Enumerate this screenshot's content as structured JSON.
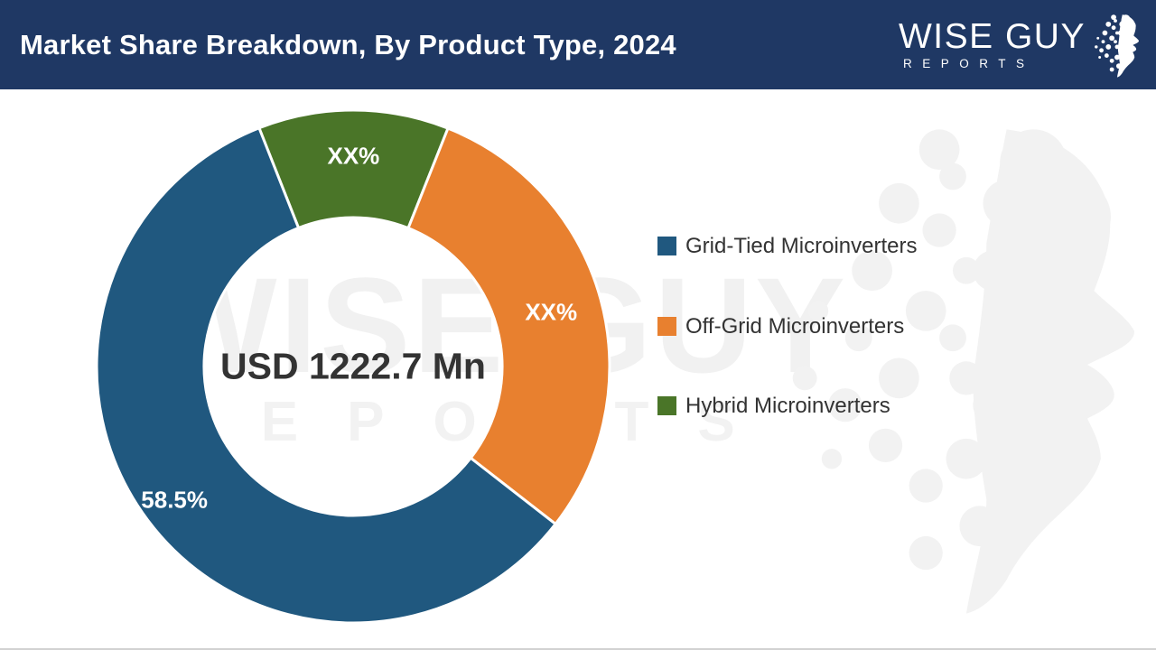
{
  "header": {
    "title": "Market Share Breakdown, By Product Type, 2024",
    "logo": {
      "brand": "WISE GUY",
      "sub_brand": "REPORTS"
    }
  },
  "watermark": {
    "brand": "WISE GUY",
    "sub_brand": "REPORTS"
  },
  "chart_data": {
    "type": "donut",
    "title": "Market Share Breakdown, By Product Type, 2024",
    "center_label": "USD 1222.7 Mn",
    "start_angle_deg": -21.5,
    "direction": "clockwise",
    "legend_position": "right",
    "slices": [
      {
        "label": "Hybrid Microinverters",
        "value_pct": 12.0,
        "display_label": "XX%",
        "color": "#4A7528",
        "label_radius": 0.82
      },
      {
        "label": "Off-Grid Microinverters",
        "value_pct": 29.5,
        "display_label": "XX%",
        "color": "#E8802F",
        "label_radius": 0.8
      },
      {
        "label": "Grid-Tied Microinverters",
        "value_pct": 58.5,
        "display_label": "58.5%",
        "color": "#20587F",
        "label_radius": 0.87
      }
    ],
    "legend": [
      {
        "label": "Grid-Tied Microinverters",
        "color": "#20587F"
      },
      {
        "label": "Off-Grid Microinverters",
        "color": "#E8802F"
      },
      {
        "label": "Hybrid Microinverters",
        "color": "#4A7528"
      }
    ]
  },
  "colors": {
    "header_bg": "#1F3864",
    "text_dark": "#333333",
    "watermark": "#F1F1F1",
    "bottom_line": "#D2D2D2"
  }
}
